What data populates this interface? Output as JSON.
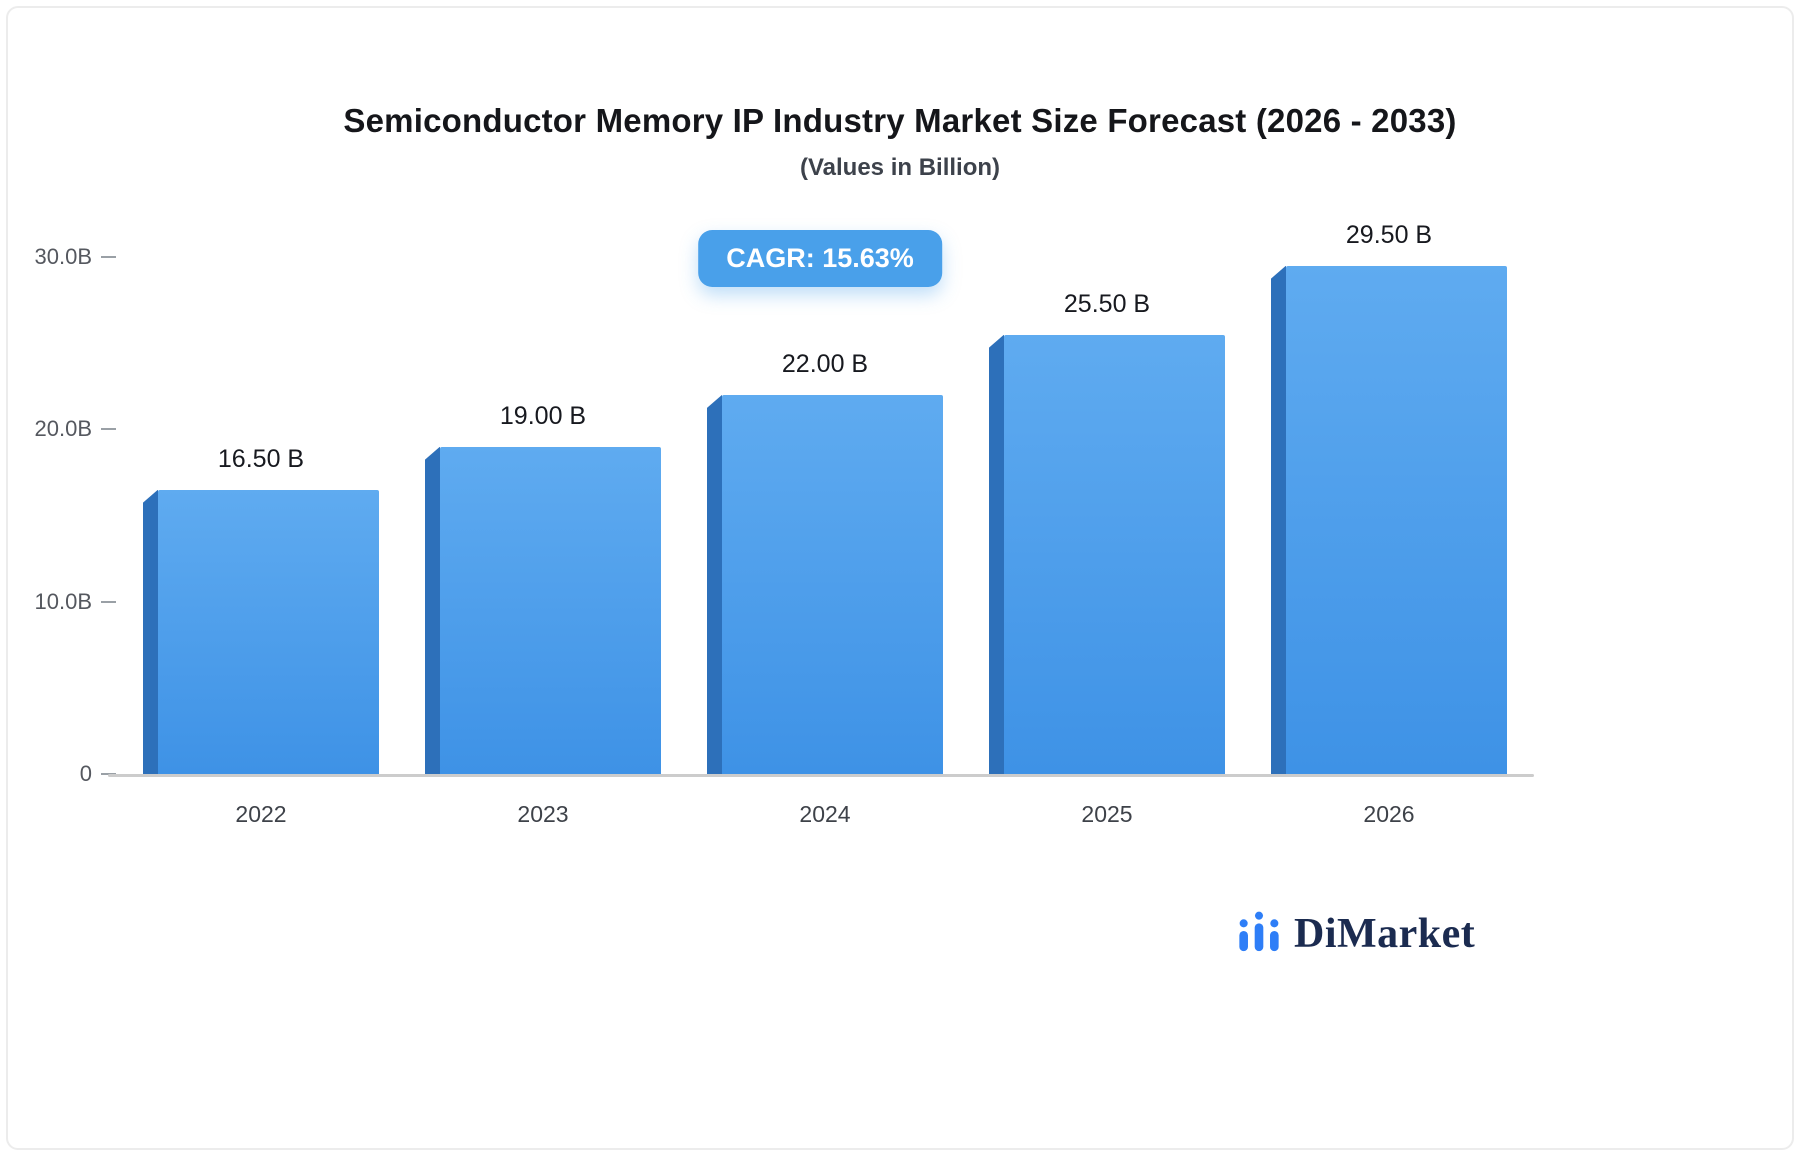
{
  "page": {
    "background": "#ffffff",
    "border_color": "#ececec"
  },
  "header": {
    "title": "Semiconductor Memory IP Industry Market Size Forecast (2026 - 2033)",
    "subtitle": "(Values in Billion)"
  },
  "badge": {
    "label": "CAGR: 15.63%",
    "background": "#49a0ea",
    "text_color": "#ffffff"
  },
  "chart_data": {
    "type": "bar",
    "categories": [
      "2022",
      "2023",
      "2024",
      "2025",
      "2026"
    ],
    "values": [
      16.5,
      19.0,
      22.0,
      25.5,
      29.5
    ],
    "value_labels": [
      "16.50 B",
      "19.00 B",
      "22.00 B",
      "25.50 B",
      "29.50 B"
    ],
    "title": "Semiconductor Memory IP Industry Market Size Forecast (2026 - 2033)",
    "subtitle": "(Values in Billion)",
    "xlabel": "",
    "ylabel": "",
    "ylim": [
      0,
      30
    ],
    "yticks": [
      0,
      10,
      20,
      30
    ],
    "ytick_labels": [
      "0",
      "10.0B",
      "20.0B",
      "30.0B"
    ],
    "grid": false,
    "legend": false,
    "bar_color_top": "#5fabf0",
    "bar_color_bottom": "#3e92e6",
    "bar_side_color": "#2d70ba",
    "baseline_color": "#cccccc"
  },
  "footer": {
    "brand": "DiMarket",
    "logo_icon": "bar-chart-icon",
    "brand_color": "#1b2b50",
    "icon_color": "#2e7ef7"
  }
}
